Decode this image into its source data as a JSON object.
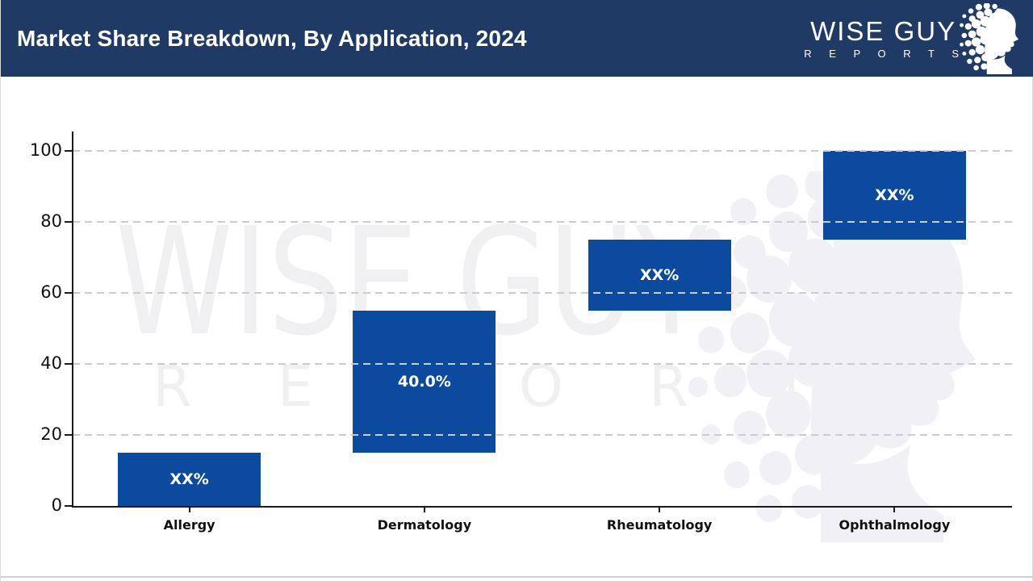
{
  "header": {
    "title": "Market Share Breakdown, By Application, 2024",
    "logo": {
      "brand_line1": "WISE GUY",
      "brand_line2": "R E P O R T S"
    }
  },
  "watermark": {
    "line1": "WISE GUY",
    "line2": "R E P O R T S"
  },
  "chart_data": {
    "type": "bar",
    "variant": "waterfall",
    "title": "Market Share Breakdown, By Application, 2024",
    "categories": [
      "Allergy",
      "Dermatology",
      "Rheumatology",
      "Ophthalmology"
    ],
    "segments": [
      {
        "category": "Allergy",
        "start": 0,
        "end": 15,
        "label": "XX%"
      },
      {
        "category": "Dermatology",
        "start": 15,
        "end": 55,
        "label": "40.0%"
      },
      {
        "category": "Rheumatology",
        "start": 55,
        "end": 75,
        "label": "XX%"
      },
      {
        "category": "Ophthalmology",
        "start": 75,
        "end": 100,
        "label": "XX%"
      }
    ],
    "yticks": [
      0,
      20,
      40,
      60,
      80,
      100
    ],
    "ylim": [
      0,
      105
    ],
    "xlabel": "",
    "ylabel": "",
    "legend": "none",
    "grid": {
      "horizontal": true,
      "style": "dashed"
    },
    "bar_color": "#0C4AA0",
    "value_label_color": "#FFFFFF"
  },
  "colors": {
    "header_bg": "#203A66",
    "bar": "#0C4AA0",
    "axis": "#1A1A1A",
    "grid": "#C9CDD3",
    "watermark": "#F0F0F3"
  }
}
